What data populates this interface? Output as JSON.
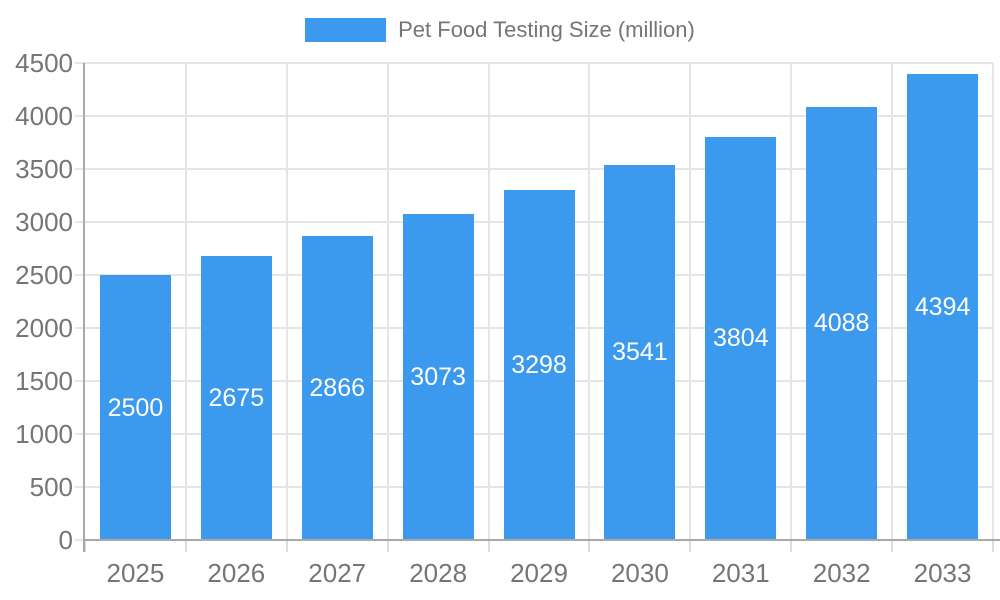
{
  "chart_data": {
    "type": "bar",
    "title": "Pet Food Testing Size (million)",
    "series_name": "Pet Food Testing Size (million)",
    "categories": [
      "2025",
      "2026",
      "2027",
      "2028",
      "2029",
      "2030",
      "2031",
      "2032",
      "2033"
    ],
    "values": [
      2500,
      2675,
      2866,
      3073,
      3298,
      3541,
      3804,
      4088,
      4394
    ],
    "xlabel": "",
    "ylabel": "",
    "ylim": [
      0,
      4500
    ],
    "yticks": [
      0,
      500,
      1000,
      1500,
      2000,
      2500,
      3000,
      3500,
      4000,
      4500
    ],
    "grid": true,
    "legend_position": "top-center",
    "value_label_position": "inside-center",
    "colors": {
      "bar": "#3B99EE",
      "value_label_text": "#FFFFFF",
      "axis_text": "#757575",
      "legend_text": "#757575",
      "grid_line": "#E5E5E5",
      "tick_line": "#DCDCDC",
      "axis_line": "#A8A8A8",
      "background": "#FFFFFF"
    }
  }
}
